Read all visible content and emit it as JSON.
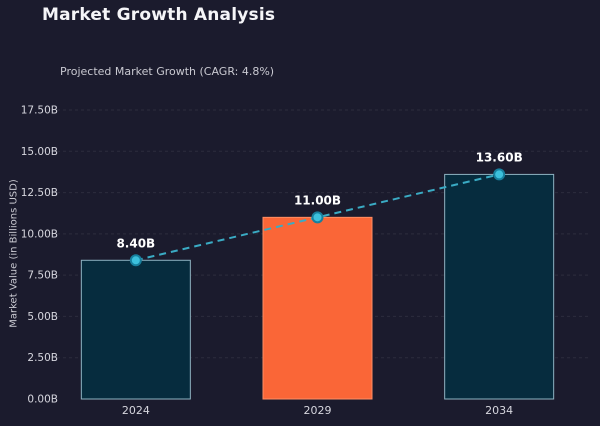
{
  "title": "Market Growth Analysis",
  "subtitle": "Projected Market Growth (CAGR: 4.8%)",
  "colors": {
    "background": "#1b1b2d",
    "title": "#f5f5f8",
    "subtitle": "#c9c9d1",
    "tick_label": "#d6d6de",
    "grid": "rgba(255,255,255,0.08)",
    "trend_line": "#3aabc4",
    "marker_fill": "#3cc0dc",
    "marker_stroke": "#177f9d",
    "value_label": "#ffffff",
    "bar_fills": [
      "#062c3e",
      "#fa6637",
      "#062c3e"
    ],
    "bar_strokes": [
      "#8fb3c2",
      "#ff8e64",
      "#8fb3c2"
    ]
  },
  "chart_data": {
    "type": "bar",
    "title": "Market Growth Analysis",
    "subtitle": "Projected Market Growth (CAGR: 4.8%)",
    "categories": [
      "2024",
      "2029",
      "2034"
    ],
    "values": [
      8.4,
      11.0,
      13.6
    ],
    "value_labels": [
      "8.40B",
      "11.00B",
      "13.60B"
    ],
    "xlabel": "",
    "ylabel": "Market Value (in Billions USD)",
    "ylim": [
      0,
      17.5
    ],
    "yticks": [
      0,
      2.5,
      5,
      7.5,
      10,
      12.5,
      15,
      17.5
    ],
    "ytick_labels": [
      "0.00B",
      "2.50B",
      "5.00B",
      "7.50B",
      "10.00B",
      "12.50B",
      "15.00B",
      "17.50B"
    ],
    "grid": "horizontal, dashed, faint",
    "legend": "none",
    "overlay": "dashed trend line with circular markers connecting bar tops"
  }
}
